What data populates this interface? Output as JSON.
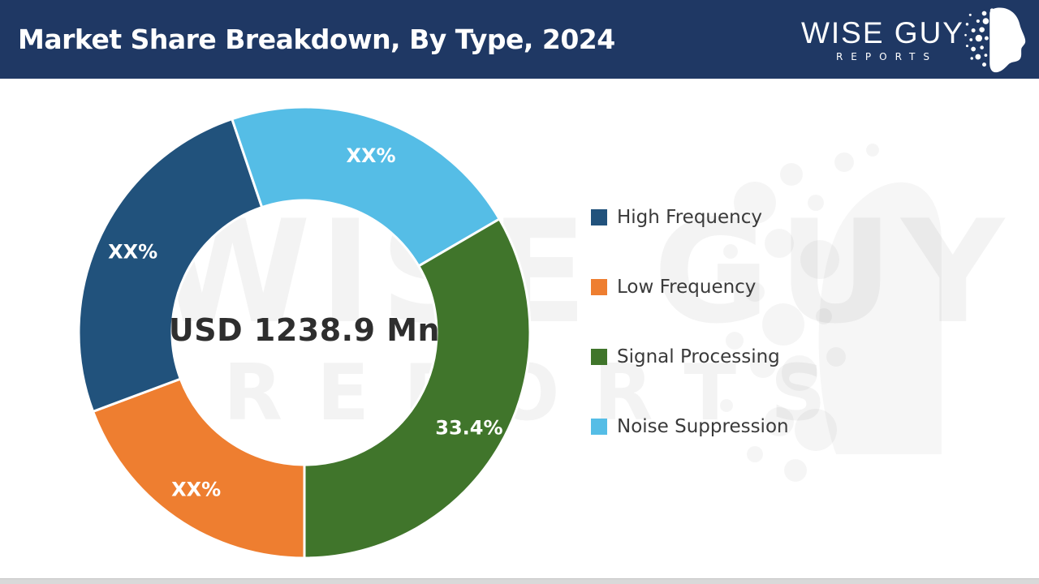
{
  "header": {
    "title": "Market Share Breakdown, By Type, 2024",
    "logo": {
      "line1": "WISE GUY",
      "line2": "REPORTS"
    }
  },
  "watermark": {
    "line1": "WISE GUY",
    "line2": "REPORTS"
  },
  "colors": {
    "header_bg": "#1f3864",
    "footer_bar": "#d9d9d9",
    "high_frequency": "#21527c",
    "low_frequency": "#ee7e30",
    "signal_processing": "#40752b",
    "noise_suppression": "#55bde6"
  },
  "chart_data": {
    "type": "pie",
    "donut": true,
    "title": "Market Share Breakdown, By Type, 2024",
    "center_label": "USD 1238.9 Mn",
    "start_angle_deg": 180,
    "direction": "clockwise",
    "legend_position": "right",
    "segments": [
      {
        "name": "Low Frequency",
        "value_pct": 19.3,
        "display_label": "XX%",
        "color": "#ee7e30"
      },
      {
        "name": "High Frequency",
        "value_pct": 25.5,
        "display_label": "XX%",
        "color": "#21527c"
      },
      {
        "name": "Noise Suppression",
        "value_pct": 21.8,
        "display_label": "XX%",
        "color": "#55bde6"
      },
      {
        "name": "Signal Processing",
        "value_pct": 33.4,
        "display_label": "33.4%",
        "color": "#40752b"
      }
    ],
    "legend": {
      "items": [
        {
          "label": "High Frequency",
          "color": "#21527c"
        },
        {
          "label": "Low Frequency",
          "color": "#ee7e30"
        },
        {
          "label": "Signal Processing",
          "color": "#40752b"
        },
        {
          "label": "Noise Suppression",
          "color": "#55bde6"
        }
      ]
    }
  }
}
